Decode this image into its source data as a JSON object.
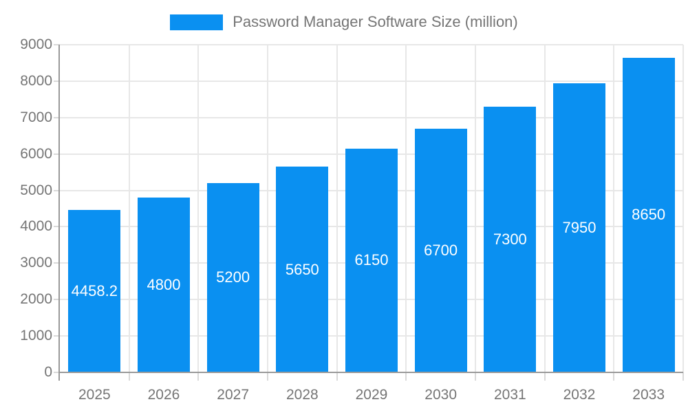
{
  "chart_data": {
    "type": "bar",
    "title": "Password Manager Software Size (million)",
    "legend_entries": [
      "Password Manager Software Size (million)"
    ],
    "legend_position": "top-center",
    "categories": [
      "2025",
      "2026",
      "2027",
      "2028",
      "2029",
      "2030",
      "2031",
      "2032",
      "2033"
    ],
    "values": [
      4458.2,
      4800,
      5200,
      5650,
      6150,
      6700,
      7300,
      7950,
      8650
    ],
    "value_labels": [
      "4458.2",
      "4800",
      "5200",
      "5650",
      "6150",
      "6700",
      "7300",
      "7950",
      "8650"
    ],
    "xlabel": "",
    "ylabel": "",
    "ylim": [
      0,
      9000
    ],
    "ytick_step": 1000,
    "ytick_labels": [
      "0",
      "1000",
      "2000",
      "3000",
      "4000",
      "5000",
      "6000",
      "7000",
      "8000",
      "9000"
    ],
    "grid": true,
    "colors": {
      "bar": "#0a90f1",
      "bar_label": "#ffffff",
      "axis_text": "#757575",
      "gridline": "#e7e7e7",
      "axis_line": "#999999",
      "tick": "#d9d9d9",
      "background": "#ffffff"
    }
  }
}
